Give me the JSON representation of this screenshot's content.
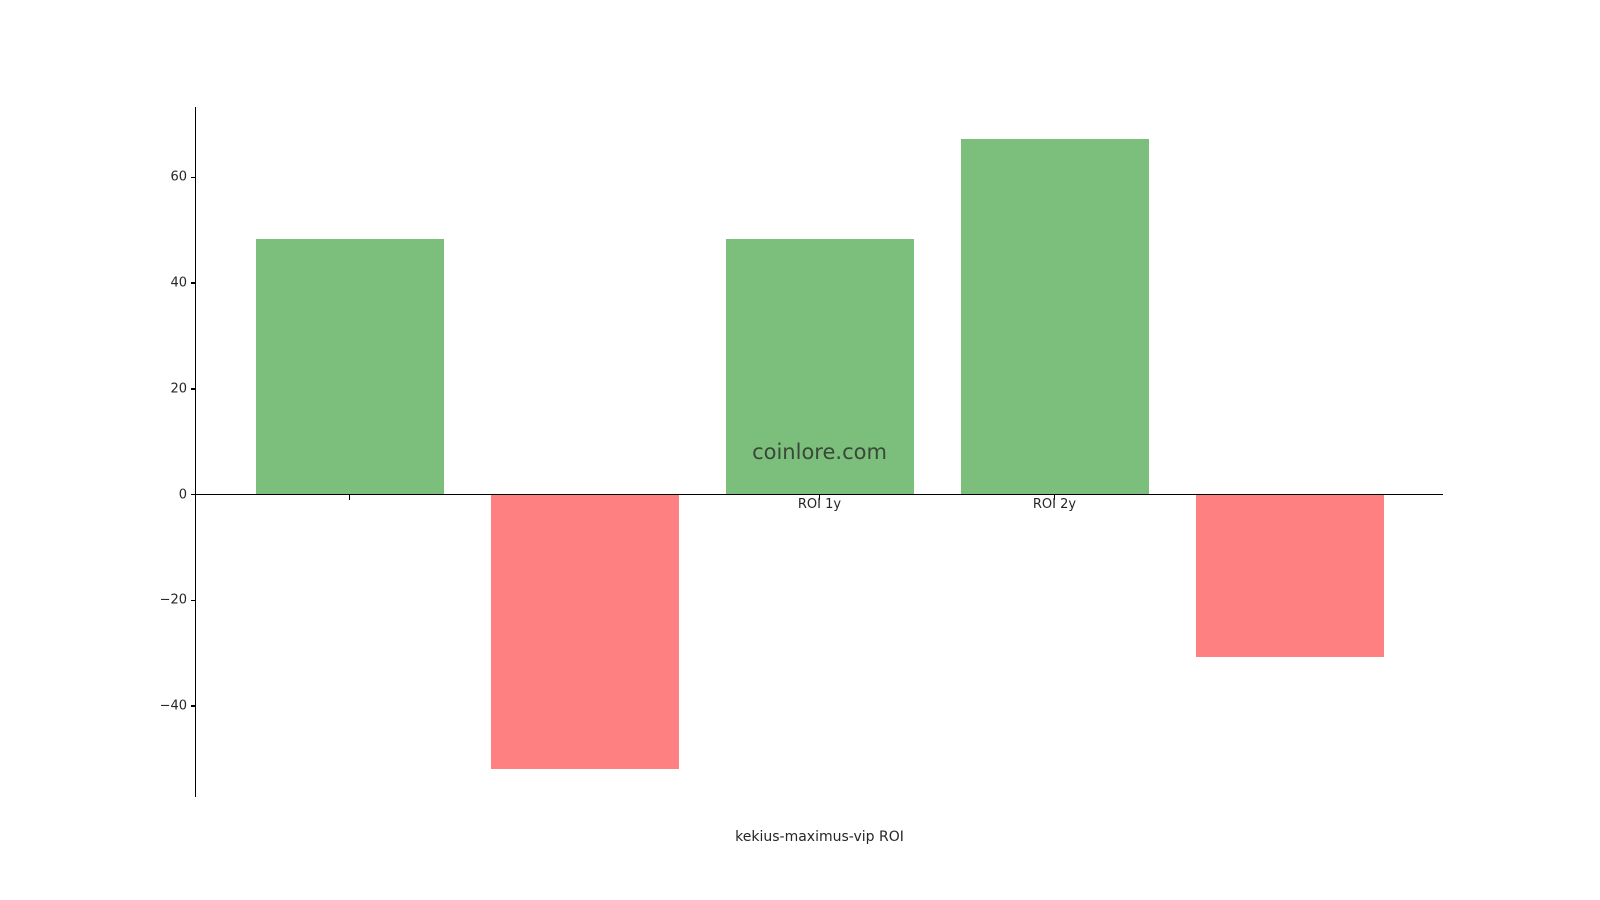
{
  "page": {
    "background": "#ffffff"
  },
  "chart_data": {
    "type": "bar",
    "title": "",
    "xlabel": "kekius-maximus-vip ROI",
    "ylabel": "",
    "watermark": "coinlore.com",
    "categories": [
      "",
      "",
      "ROI 1y",
      "ROI 2y",
      ""
    ],
    "values": [
      48.3,
      -51.9,
      48.3,
      67.3,
      -30.7
    ],
    "bar_colors": [
      "#7cbe7c",
      "#ff8080",
      "#7cbe7c",
      "#7cbe7c",
      "#ff8080"
    ],
    "positive_color": "#7cbe7c",
    "negative_color": "#ff8080",
    "ylim": [
      -57.2,
      73.3
    ],
    "yticks": [
      60,
      40,
      20,
      0,
      -20,
      -40
    ],
    "ytick_labels": [
      "60",
      "40",
      "20",
      "0",
      "−20",
      "−40"
    ],
    "grid": false,
    "legend_position": "none",
    "axis_color": "#000000",
    "text_color": "#262626",
    "watermark_color": "rgba(38,38,38,0.78)"
  }
}
